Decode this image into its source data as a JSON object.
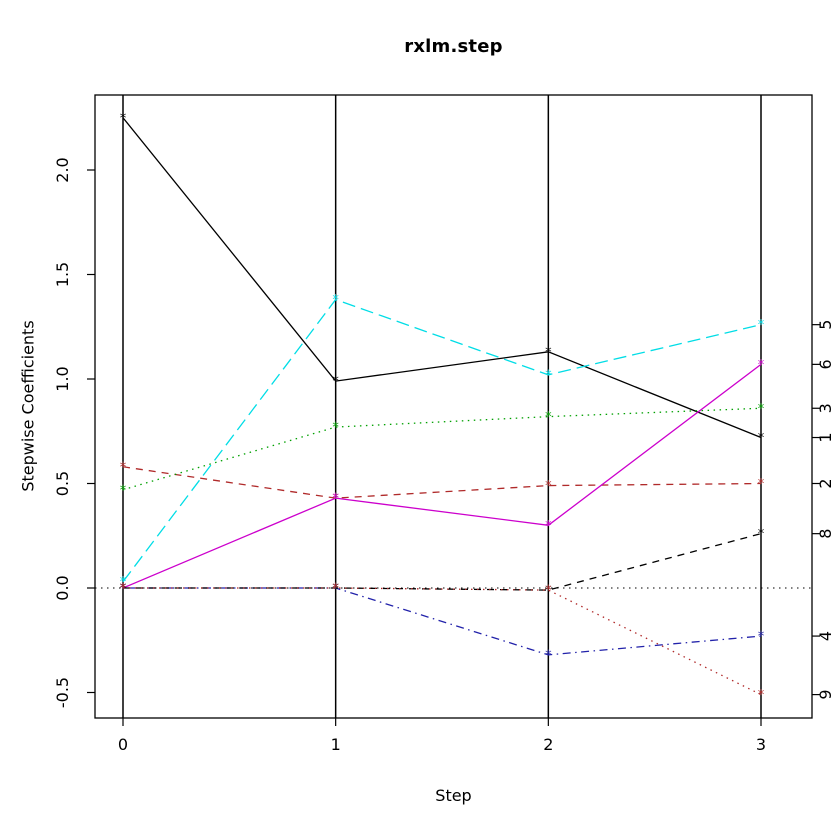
{
  "chart_data": {
    "type": "line",
    "title": "rxlm.step",
    "xlabel": "Step",
    "ylabel": "Stepwise Coefficients",
    "x": [
      0,
      1,
      2,
      3
    ],
    "xticks": [
      "0",
      "1",
      "2",
      "3"
    ],
    "yticks": [
      -0.5,
      0.0,
      0.5,
      1.0,
      1.5,
      2.0
    ],
    "xlim": [
      -0.13,
      3.24
    ],
    "ylim": [
      -0.62,
      2.36
    ],
    "grid": false,
    "zero_reference_line": true,
    "vertical_step_lines": [
      0,
      1,
      2,
      3
    ],
    "marker": "*",
    "series": [
      {
        "name": "1",
        "color": "#000000",
        "linetype": "solid",
        "values": [
          2.25,
          0.99,
          1.13,
          0.72
        ]
      },
      {
        "name": "2",
        "color": "#b02a2a",
        "linetype": "dashed",
        "values": [
          0.58,
          0.43,
          0.49,
          0.5
        ]
      },
      {
        "name": "3",
        "color": "#00a000",
        "linetype": "dotted",
        "values": [
          0.47,
          0.77,
          0.82,
          0.86
        ]
      },
      {
        "name": "4",
        "color": "#2222aa",
        "linetype": "dotdash",
        "values": [
          0.0,
          0.0,
          -0.32,
          -0.23
        ]
      },
      {
        "name": "5",
        "color": "#00dde6",
        "linetype": "longdash",
        "values": [
          0.03,
          1.38,
          1.02,
          1.26
        ]
      },
      {
        "name": "6",
        "color": "#cc00cc",
        "linetype": "solid",
        "values": [
          0.0,
          0.43,
          0.3,
          1.07
        ]
      },
      {
        "name": "8",
        "color": "#000000",
        "linetype": "dashed",
        "values": [
          0.0,
          0.0,
          -0.01,
          0.26
        ]
      },
      {
        "name": "9",
        "color": "#b02a2a",
        "linetype": "dotted",
        "values": [
          0.0,
          0.0,
          -0.01,
          -0.51
        ]
      }
    ],
    "right_axis_labels": [
      {
        "label": "5",
        "value": 1.26
      },
      {
        "label": "6",
        "value": 1.07
      },
      {
        "label": "3",
        "value": 0.86
      },
      {
        "label": "1",
        "value": 0.72
      },
      {
        "label": "2",
        "value": 0.5
      },
      {
        "label": "8",
        "value": 0.26
      },
      {
        "label": "4",
        "value": -0.23
      },
      {
        "label": "9",
        "value": -0.51
      }
    ],
    "legend_position": "right-axis"
  }
}
